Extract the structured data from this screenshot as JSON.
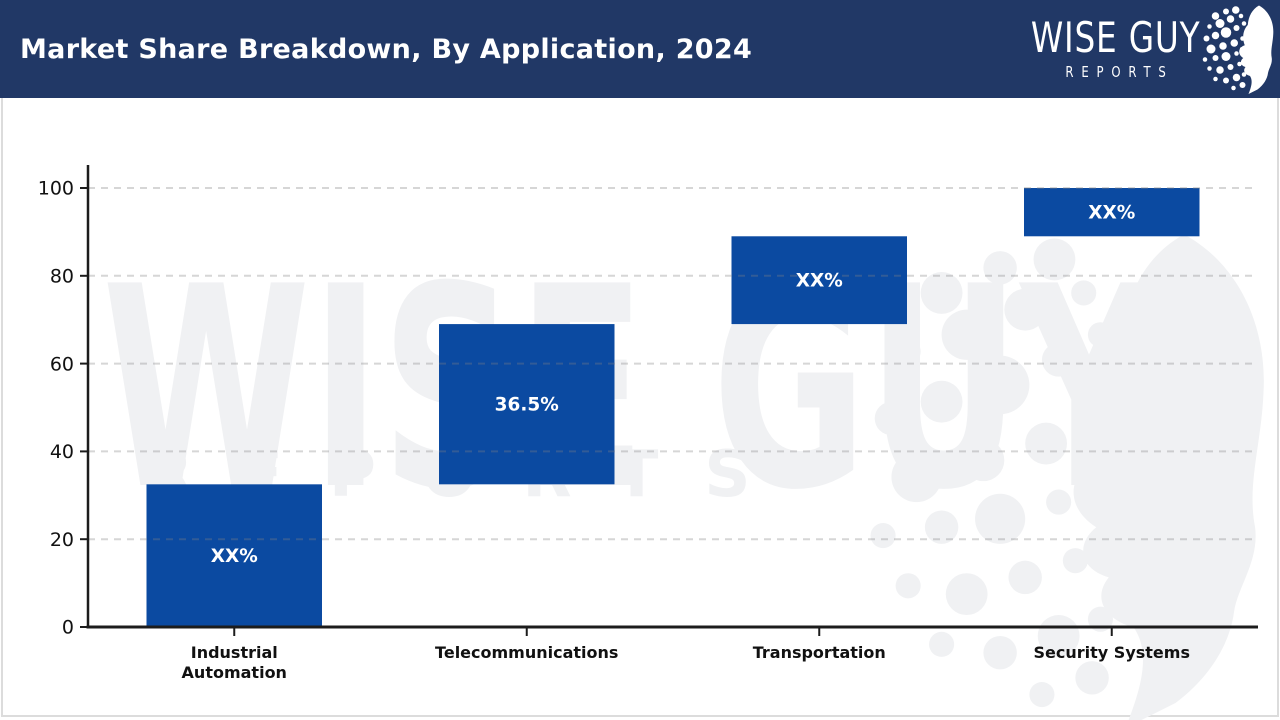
{
  "header": {
    "title": "Market Share Breakdown, By Application, 2024",
    "logo": {
      "name": "WISE GUY",
      "tagline": "REPORTS"
    }
  },
  "watermark": {
    "name": "WISE GUY",
    "tagline": "REPORTS"
  },
  "chart_data": {
    "type": "bar",
    "subtype": "waterfall",
    "title": "Market Share Breakdown, By Application, 2024",
    "categories": [
      "Industrial Automation",
      "Telecommunications",
      "Transportation",
      "Security Systems"
    ],
    "category_lines": [
      [
        "Industrial",
        "Automation"
      ],
      [
        "Telecommunications"
      ],
      [
        "Transportation"
      ],
      [
        "Security Systems"
      ]
    ],
    "bars": [
      {
        "category": "Industrial Automation",
        "start": 0,
        "end": 32.5,
        "size": 32.5,
        "label": "XX%"
      },
      {
        "category": "Telecommunications",
        "start": 32.5,
        "end": 69,
        "size": 36.5,
        "label": "36.5%"
      },
      {
        "category": "Transportation",
        "start": 69,
        "end": 89,
        "size": 20,
        "label": "XX%"
      },
      {
        "category": "Security Systems",
        "start": 89,
        "end": 100,
        "size": 11,
        "label": "XX%"
      }
    ],
    "xlabel": "",
    "ylabel": "",
    "ylim": [
      0,
      100
    ],
    "yticks": [
      0,
      20,
      40,
      60,
      80,
      100
    ],
    "grid": {
      "horizontal": true,
      "style": "dashed"
    },
    "legend": "none",
    "bar_color": "#0b4aa1",
    "bar_label_color": "#ffffff"
  },
  "colors": {
    "header_bg": "#213866",
    "bar": "#0b4aa1",
    "axis": "#1c1c1c",
    "grid": "#d9d9d9",
    "watermark": "#f0f1f3",
    "border": "#dcdcdc"
  }
}
